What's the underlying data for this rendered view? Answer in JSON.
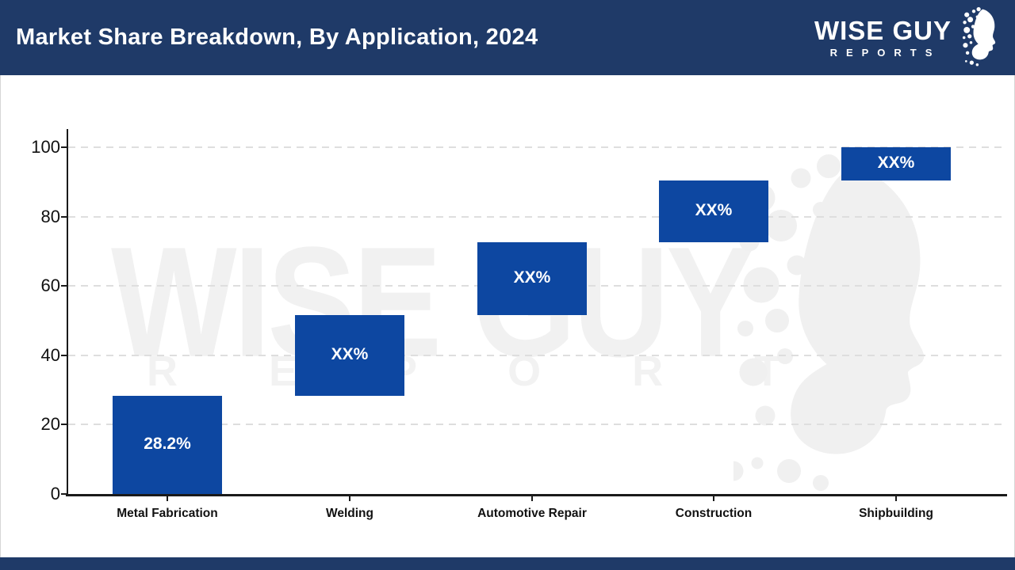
{
  "header": {
    "title": "Market Share Breakdown, By Application, 2024",
    "logo_line1": "WISE GUY",
    "logo_line2": "REPORTS",
    "bg_color": "#1f3a68"
  },
  "watermark": {
    "line1": "WISE GUY",
    "line2": "R E P O R T S"
  },
  "chart_data": {
    "type": "bar",
    "subtype": "waterfall",
    "title": "Market Share Breakdown, By Application, 2024",
    "categories": [
      "Metal Fabrication",
      "Welding",
      "Automotive Repair",
      "Construction",
      "Shipbuilding"
    ],
    "segments": [
      {
        "category": "Metal Fabrication",
        "start": 0,
        "end": 28.2,
        "label": "28.2%"
      },
      {
        "category": "Welding",
        "start": 28.2,
        "end": 51.5,
        "label": "XX%"
      },
      {
        "category": "Automotive Repair",
        "start": 51.5,
        "end": 72.7,
        "label": "XX%"
      },
      {
        "category": "Construction",
        "start": 72.7,
        "end": 90.3,
        "label": "XX%"
      },
      {
        "category": "Shipbuilding",
        "start": 90.3,
        "end": 100,
        "label": "XX%"
      }
    ],
    "yticks": [
      0,
      20,
      40,
      60,
      80,
      100
    ],
    "ylim": [
      0,
      105
    ],
    "xlabel": "",
    "ylabel": "",
    "grid": "horizontal-dashed",
    "legend": "none",
    "bar_color": "#0d47a1",
    "bar_label_color": "#ffffff",
    "axis_color": "#1a1a1a"
  },
  "footer": {
    "bg_color": "#1f3a68"
  }
}
